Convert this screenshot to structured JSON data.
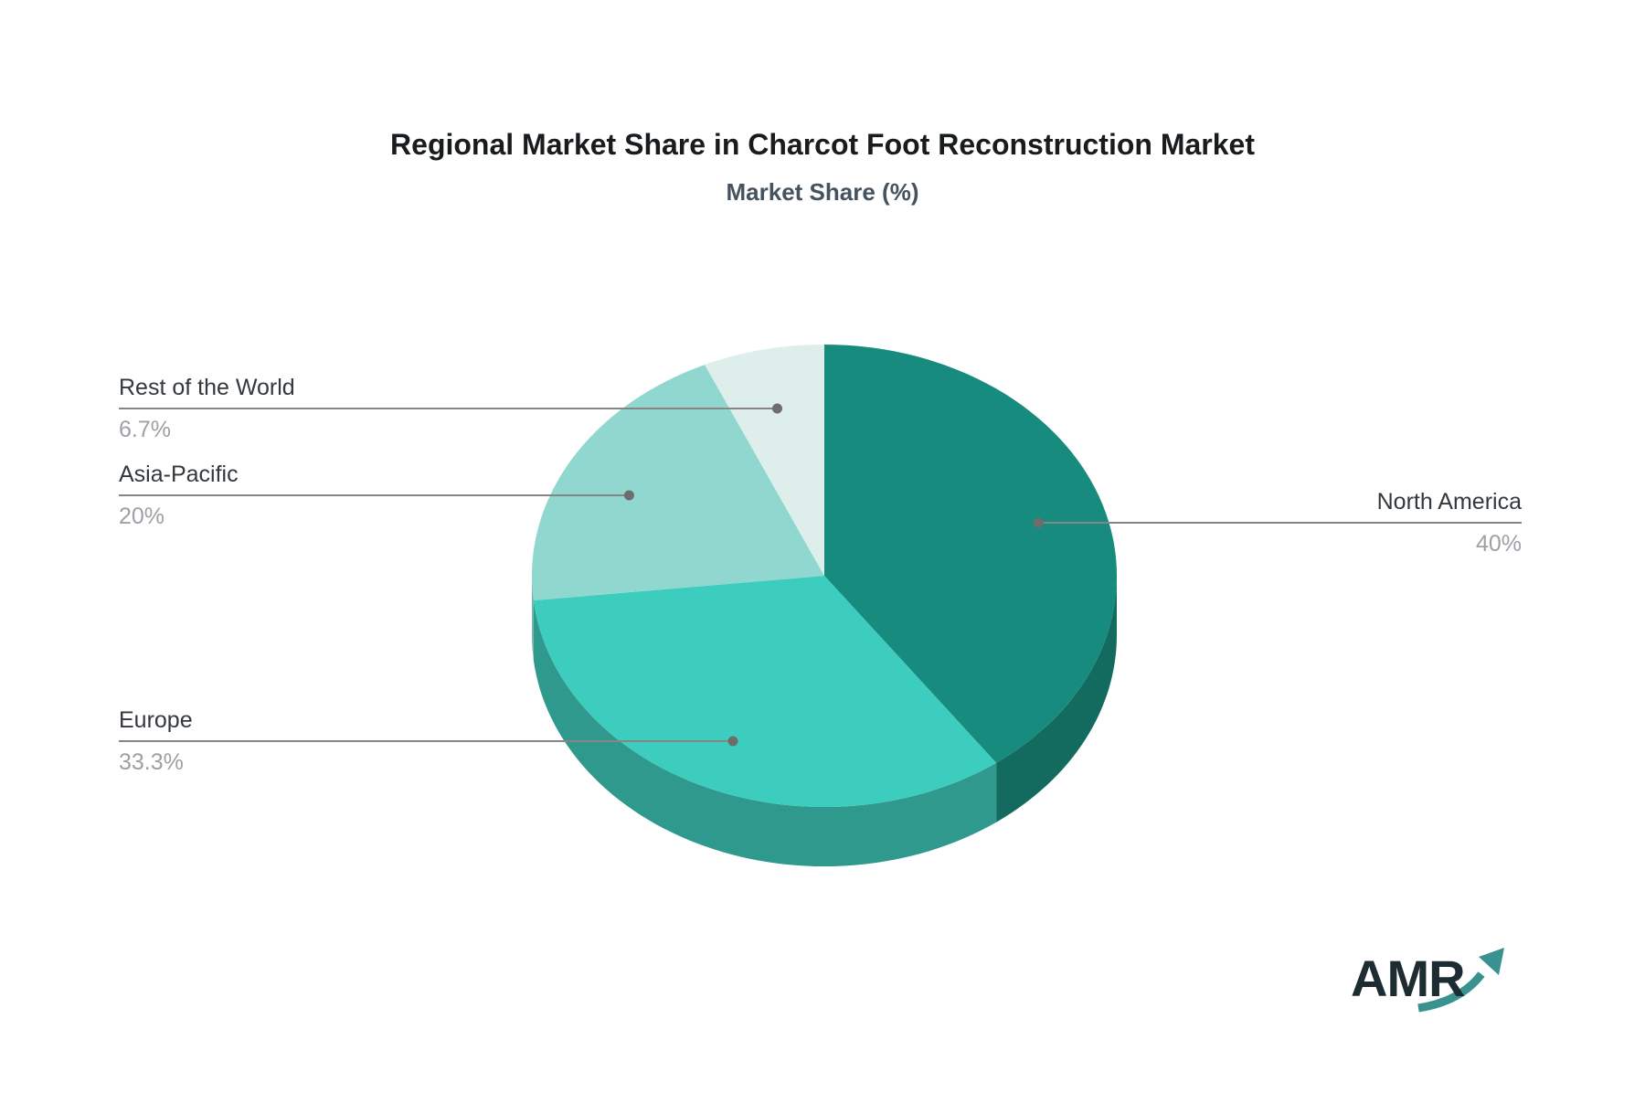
{
  "chart_data": {
    "type": "pie",
    "title": "Regional Market Share in Charcot Foot Reconstruction Market",
    "subtitle": "Market Share (%)",
    "unit": "%",
    "style_3d": true,
    "direction": "clockwise",
    "start_angle_deg": 0,
    "background": "#ffffff",
    "label_color": "#33383d",
    "value_color": "#9da1a5",
    "leader_line_color": "#868686",
    "leader_dot_color": "#6d6d6d",
    "legend_position": "callouts",
    "slices": [
      {
        "label": "North America",
        "value": 40,
        "display_value": "40%",
        "color": "#178c7e",
        "side_color": "#136b60"
      },
      {
        "label": "Europe",
        "value": 33.3,
        "display_value": "33.3%",
        "color": "#3dcdbe",
        "side_color": "#2f998e"
      },
      {
        "label": "Asia-Pacific",
        "value": 20,
        "display_value": "20%",
        "color": "#90d8cf",
        "side_color": "#6db1a8"
      },
      {
        "label": "Rest of the World",
        "value": 6.7,
        "display_value": "6.7%",
        "color": "#ddeeeb",
        "side_color": "#b9cfcb"
      }
    ]
  },
  "logo": {
    "text": "AMR",
    "text_color": "#1d2b33",
    "arrow_color": "#39928f"
  }
}
